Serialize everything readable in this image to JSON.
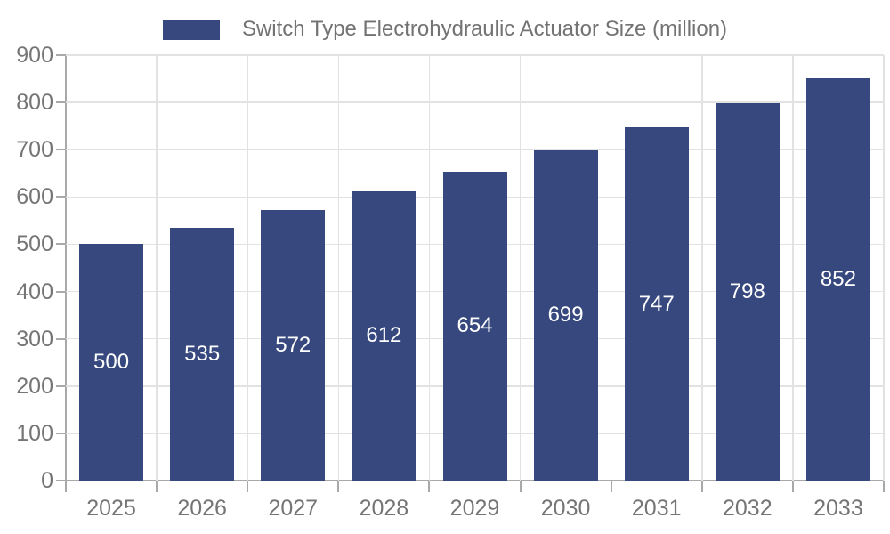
{
  "chart_data": {
    "type": "bar",
    "title": "Switch Type Electrohydraulic Actuator Size (million)",
    "legend_label": "Switch Type Electrohydraulic Actuator Size (million)",
    "legend_position": "top-center",
    "categories": [
      "2025",
      "2026",
      "2027",
      "2028",
      "2029",
      "2030",
      "2031",
      "2032",
      "2033"
    ],
    "values": [
      500,
      535,
      572,
      612,
      654,
      699,
      747,
      798,
      852
    ],
    "xlabel": "",
    "ylabel": "",
    "ylim": [
      0,
      900
    ],
    "ytick_step": 100,
    "ytick_labels": [
      "0",
      "100",
      "200",
      "300",
      "400",
      "500",
      "600",
      "700",
      "800",
      "900"
    ],
    "grid": true,
    "value_labels_shown": true,
    "colors": {
      "bar": "#36487D",
      "grid": "#e2e2e2",
      "axis": "#a9a9a9",
      "tick_label": "#757575",
      "value_label": "#ffffff",
      "legend_text": "#737373",
      "background": "#ffffff"
    }
  }
}
